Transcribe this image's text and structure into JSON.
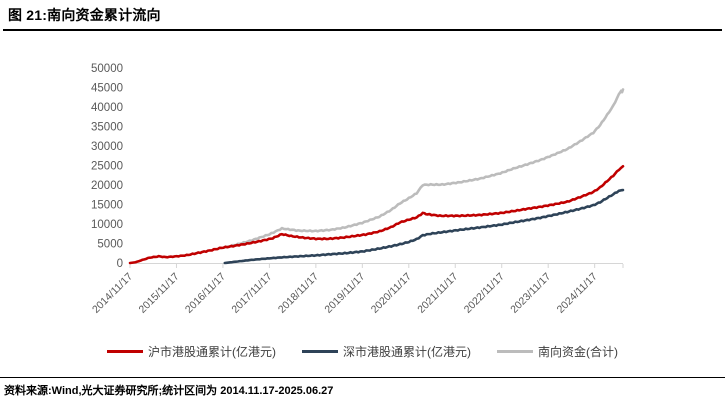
{
  "page": {
    "title": "图 21:南向资金累计流向",
    "source_note": "资料来源:Wind,光大证券研究所;统计区间为 2014.11.17-2025.06.27"
  },
  "chart_data": {
    "type": "line",
    "title": "南向资金累计流向",
    "xlabel": "",
    "ylabel": "亿港元",
    "grid": false,
    "legend_position": "bottom",
    "ylim": [
      0,
      50000
    ],
    "yticks": [
      0,
      5000,
      10000,
      15000,
      20000,
      25000,
      30000,
      35000,
      40000,
      45000,
      50000
    ],
    "x_range_years": [
      2014.88,
      2025.49
    ],
    "xtick_years": [
      2014.88,
      2015.88,
      2016.88,
      2017.88,
      2018.88,
      2019.88,
      2020.88,
      2021.88,
      2022.88,
      2023.88,
      2024.88
    ],
    "xtick_labels": [
      "2014/11/17",
      "2015/11/17",
      "2016/11/17",
      "2017/11/17",
      "2018/11/17",
      "2019/11/17",
      "2020/11/17",
      "2021/11/17",
      "2022/11/17",
      "2023/11/17",
      "2024/11/17"
    ],
    "axis_color": "#D6D6D6",
    "tick_label_color": "#595959",
    "series": [
      {
        "name": "沪市港股通累计(亿港元)",
        "color": "#C00000",
        "points": [
          [
            2014.88,
            0
          ],
          [
            2015.0,
            200
          ],
          [
            2015.15,
            800
          ],
          [
            2015.31,
            1400
          ],
          [
            2015.5,
            1700
          ],
          [
            2015.65,
            1500
          ],
          [
            2015.88,
            1700
          ],
          [
            2016.1,
            2000
          ],
          [
            2016.35,
            2600
          ],
          [
            2016.6,
            3200
          ],
          [
            2016.85,
            3900
          ],
          [
            2017.1,
            4350
          ],
          [
            2017.4,
            4950
          ],
          [
            2017.7,
            5650
          ],
          [
            2017.95,
            6350
          ],
          [
            2018.15,
            7400
          ],
          [
            2018.35,
            6900
          ],
          [
            2018.6,
            6500
          ],
          [
            2018.88,
            6200
          ],
          [
            2019.15,
            6200
          ],
          [
            2019.45,
            6500
          ],
          [
            2019.7,
            6900
          ],
          [
            2019.95,
            7300
          ],
          [
            2020.25,
            8100
          ],
          [
            2020.5,
            9200
          ],
          [
            2020.69,
            10400
          ],
          [
            2020.88,
            11100
          ],
          [
            2021.05,
            11700
          ],
          [
            2021.18,
            12800
          ],
          [
            2021.28,
            12500
          ],
          [
            2021.55,
            12100
          ],
          [
            2021.98,
            12100
          ],
          [
            2022.4,
            12300
          ],
          [
            2022.85,
            12800
          ],
          [
            2023.13,
            13300
          ],
          [
            2023.43,
            13900
          ],
          [
            2023.71,
            14400
          ],
          [
            2023.99,
            15000
          ],
          [
            2024.29,
            15700
          ],
          [
            2024.57,
            16900
          ],
          [
            2024.85,
            18200
          ],
          [
            2025.0,
            19400
          ],
          [
            2025.15,
            21000
          ],
          [
            2025.28,
            22400
          ],
          [
            2025.4,
            23900
          ],
          [
            2025.49,
            24800
          ]
        ]
      },
      {
        "name": "深市港股通累计(亿港元)",
        "color": "#2E4358",
        "points": [
          [
            2016.92,
            0
          ],
          [
            2017.2,
            400
          ],
          [
            2017.5,
            800
          ],
          [
            2017.88,
            1200
          ],
          [
            2018.15,
            1450
          ],
          [
            2018.5,
            1700
          ],
          [
            2018.88,
            1950
          ],
          [
            2019.2,
            2250
          ],
          [
            2019.5,
            2500
          ],
          [
            2019.88,
            2950
          ],
          [
            2020.25,
            3700
          ],
          [
            2020.5,
            4300
          ],
          [
            2020.69,
            4800
          ],
          [
            2020.88,
            5400
          ],
          [
            2021.05,
            6100
          ],
          [
            2021.18,
            7100
          ],
          [
            2021.35,
            7500
          ],
          [
            2021.6,
            7900
          ],
          [
            2021.98,
            8500
          ],
          [
            2022.4,
            9100
          ],
          [
            2022.85,
            9800
          ],
          [
            2023.13,
            10400
          ],
          [
            2023.43,
            11000
          ],
          [
            2023.71,
            11600
          ],
          [
            2023.99,
            12300
          ],
          [
            2024.29,
            13100
          ],
          [
            2024.57,
            13900
          ],
          [
            2024.85,
            14800
          ],
          [
            2025.0,
            15600
          ],
          [
            2025.15,
            16700
          ],
          [
            2025.28,
            17600
          ],
          [
            2025.4,
            18500
          ],
          [
            2025.49,
            18700
          ]
        ]
      },
      {
        "name": "南向资金(合计)",
        "color": "#BCBCBC",
        "points": [
          [
            2016.92,
            4000
          ],
          [
            2017.2,
            4800
          ],
          [
            2017.5,
            5800
          ],
          [
            2017.88,
            7350
          ],
          [
            2018.15,
            8850
          ],
          [
            2018.5,
            8300
          ],
          [
            2018.88,
            8200
          ],
          [
            2019.2,
            8500
          ],
          [
            2019.5,
            9100
          ],
          [
            2019.88,
            10300
          ],
          [
            2020.25,
            11900
          ],
          [
            2020.5,
            13600
          ],
          [
            2020.69,
            15300
          ],
          [
            2020.88,
            16600
          ],
          [
            2021.05,
            17900
          ],
          [
            2021.18,
            20000
          ],
          [
            2021.35,
            20100
          ],
          [
            2021.6,
            20100
          ],
          [
            2021.98,
            20700
          ],
          [
            2022.4,
            21600
          ],
          [
            2022.85,
            23000
          ],
          [
            2023.13,
            24200
          ],
          [
            2023.43,
            25300
          ],
          [
            2023.71,
            26400
          ],
          [
            2023.99,
            27700
          ],
          [
            2024.29,
            29200
          ],
          [
            2024.57,
            31200
          ],
          [
            2024.85,
            33400
          ],
          [
            2025.0,
            35400
          ],
          [
            2025.15,
            38000
          ],
          [
            2025.28,
            40300
          ],
          [
            2025.4,
            43200
          ],
          [
            2025.45,
            44200
          ],
          [
            2025.47,
            43800
          ],
          [
            2025.49,
            44500
          ]
        ]
      }
    ]
  }
}
